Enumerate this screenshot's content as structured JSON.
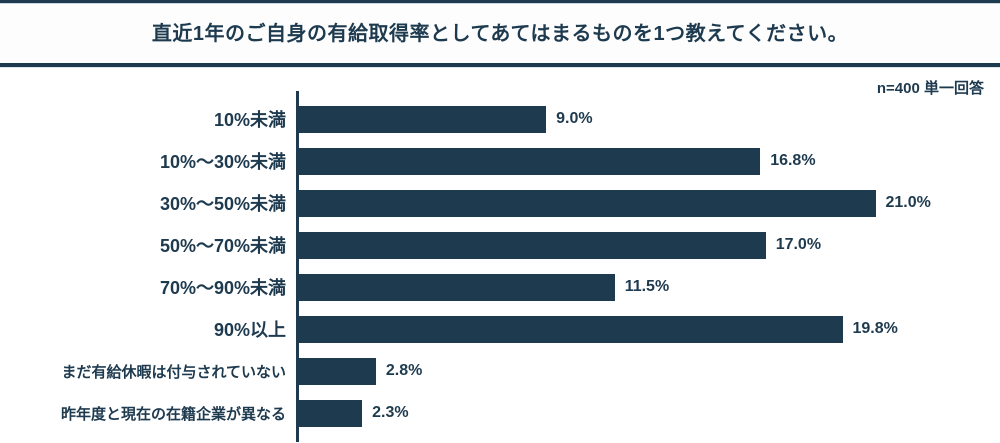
{
  "title": "直近1年のご自身の有給取得率としてあてはまるものを1つ教えてください。",
  "meta": "n=400 単一回答",
  "colors": {
    "bar": "#1e3a4f",
    "text": "#1e3a4f",
    "rule": "#1e3a4f",
    "rule_halo": "#ccd9e2",
    "background": "#ffffff"
  },
  "chart_data": {
    "type": "bar",
    "orientation": "horizontal",
    "title": "直近1年のご自身の有給取得率としてあてはまるものを1つ教えてください。",
    "subtitle": "n=400 単一回答",
    "categories": [
      "10%未満",
      "10%〜30%未満",
      "30%〜50%未満",
      "50%〜70%未満",
      "70%〜90%未満",
      "90%以上",
      "まだ有給休暇は付与されていない",
      "昨年度と現在の在籍企業が異なる"
    ],
    "values": [
      9.0,
      16.8,
      21.0,
      17.0,
      11.5,
      19.8,
      2.8,
      2.3
    ],
    "value_labels": [
      "9.0%",
      "16.8%",
      "21.0%",
      "17.0%",
      "11.5%",
      "19.8%",
      "2.8%",
      "2.3%"
    ],
    "xlabel": "",
    "ylabel": "",
    "xlim": [
      0,
      25.5
    ],
    "grid": false,
    "legend": false,
    "bar_color": "#1e3a4f"
  }
}
